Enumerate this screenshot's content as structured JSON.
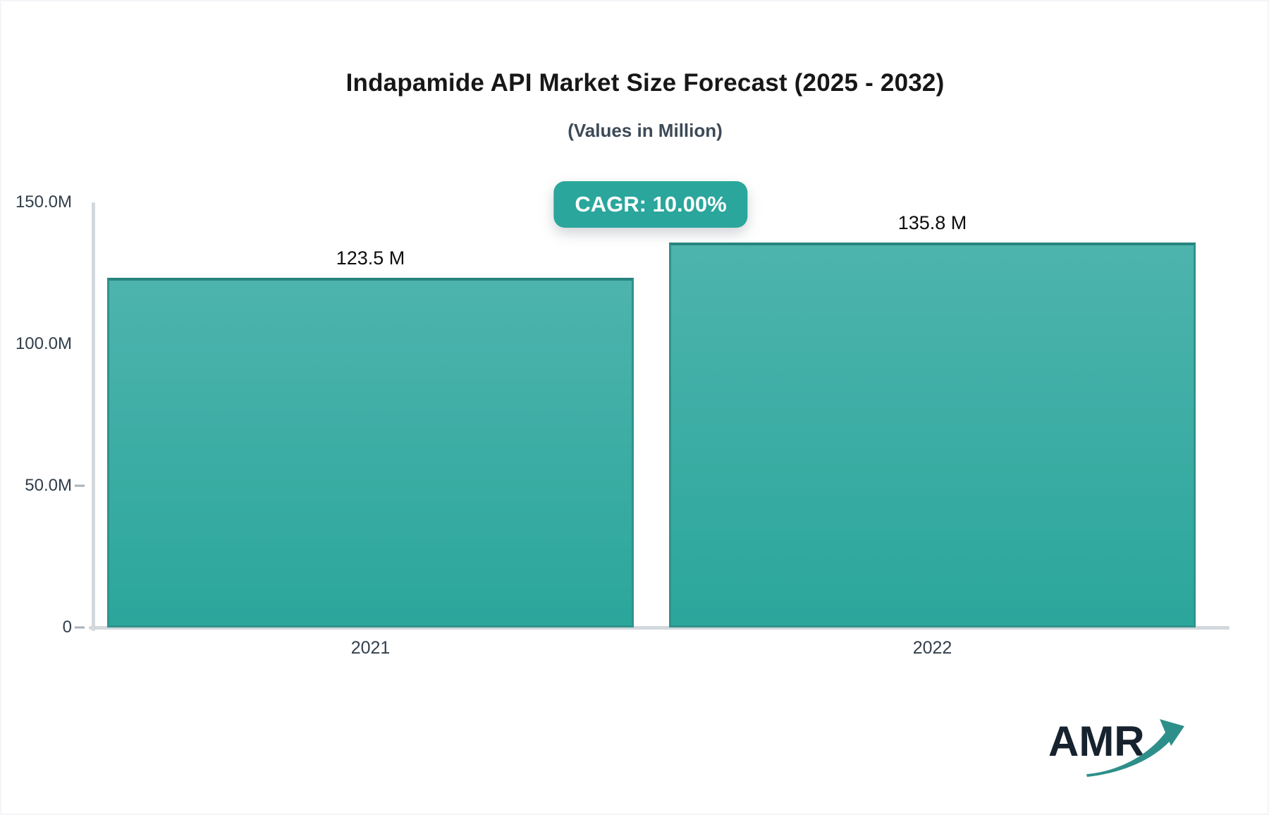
{
  "header": {
    "title": "Indapamide API Market Size Forecast (2025 - 2032)",
    "subtitle": "(Values in Million)"
  },
  "badge": {
    "label": "CAGR: 10.00%",
    "background": "#2aa69c",
    "text_color": "#ffffff"
  },
  "chart_data": {
    "type": "bar",
    "title": "Indapamide API Market Size Forecast (2025 - 2032)",
    "subtitle": "(Values in Million)",
    "categories": [
      "2021",
      "2022"
    ],
    "values": [
      123.5,
      135.8
    ],
    "value_labels": [
      "123.5 M",
      "135.8 M"
    ],
    "xlabel": "",
    "ylabel": "",
    "ylim": [
      0,
      150
    ],
    "yticks": [
      {
        "value": 0,
        "label": "0",
        "dash": true
      },
      {
        "value": 50,
        "label": "50.0M",
        "dash": true
      },
      {
        "value": 100,
        "label": "100.0M",
        "dash": false
      },
      {
        "value": 150,
        "label": "150.0M",
        "dash": false
      }
    ],
    "grid": false,
    "legend": false,
    "bar_color_top": "#4db4ad",
    "bar_color_bottom": "#2ba69b",
    "bar_border_color": "#27847e",
    "axis_color": "#d3d8dc"
  },
  "logo": {
    "text": "AMR",
    "text_color": "#16222e",
    "arrow_color": "#2e8f8a"
  }
}
